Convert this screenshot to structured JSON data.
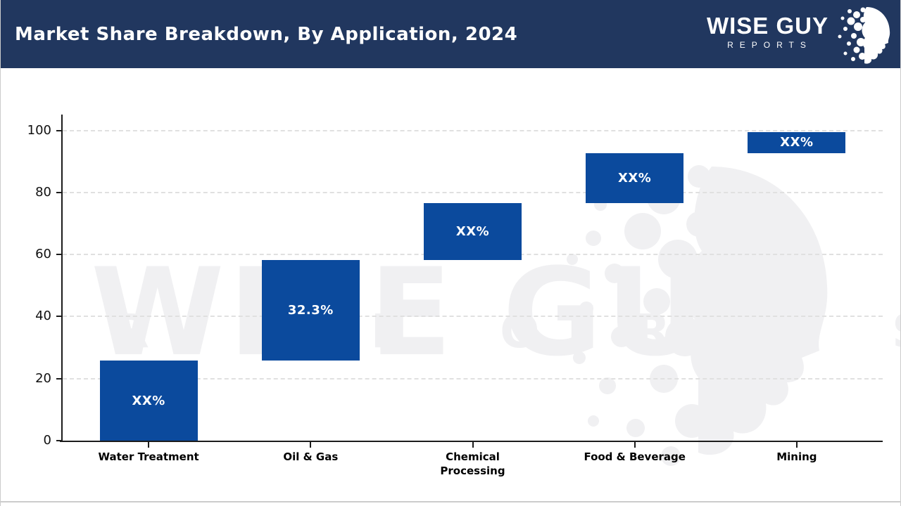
{
  "header": {
    "title": "Market Share Breakdown, By Application, 2024",
    "logo": {
      "wordmark": "WISE GUY",
      "subtext": "REPORTS"
    }
  },
  "watermark": {
    "line1": "WISE GUY",
    "line2": "R E P O R T S"
  },
  "chart_data": {
    "type": "bar",
    "subtype": "waterfall",
    "title": "Market Share Breakdown, By Application, 2024",
    "categories": [
      "Water Treatment",
      "Oil & Gas",
      "Chemical\nProcessing",
      "Food & Beverage",
      "Mining"
    ],
    "segments": [
      {
        "category": "Water Treatment",
        "start": 0,
        "end": 25.8,
        "label": "XX%"
      },
      {
        "category": "Oil & Gas",
        "start": 25.8,
        "end": 58.1,
        "label": "32.3%"
      },
      {
        "category": "Chemical\nProcessing",
        "start": 58.1,
        "end": 76.6,
        "label": "XX%"
      },
      {
        "category": "Food & Beverage",
        "start": 76.6,
        "end": 92.7,
        "label": "XX%"
      },
      {
        "category": "Mining",
        "start": 92.7,
        "end": 99.5,
        "label": "XX%"
      }
    ],
    "xlabel": "",
    "ylabel": "",
    "ylim": [
      0,
      105
    ],
    "yticks": [
      0,
      20,
      40,
      60,
      80,
      100
    ],
    "grid": "horizontal-dashed",
    "legend": "none",
    "bar_color": "#0b4a9d",
    "bar_label_color": "#ffffff"
  },
  "colors": {
    "header_bg": "#21375f",
    "bar": "#0b4a9d",
    "axis": "#1c1c1c",
    "gridline": "#e0e0e0",
    "watermark": "#f0f0f2",
    "page_border": "#cccccc"
  }
}
